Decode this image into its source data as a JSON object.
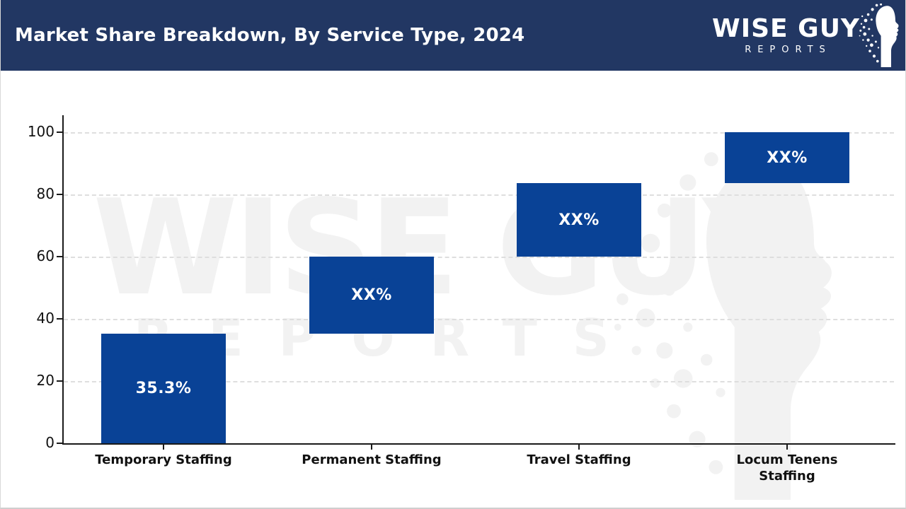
{
  "header": {
    "title": "Market Share Breakdown, By Service Type, 2024"
  },
  "logo": {
    "name": "WISE GUY",
    "subtitle": "REPORTS",
    "icon": "dotted-face-profile-icon"
  },
  "watermark": {
    "line1": "WISE GUY",
    "line2": "REPORTS",
    "icon": "dotted-face-profile-icon"
  },
  "chart_data": {
    "type": "bar",
    "subtype": "waterfall",
    "title": "Market Share Breakdown, By Service Type, 2024",
    "categories": [
      "Temporary Staffing",
      "Permanent Staffing",
      "Travel Staffing",
      "Locum Tenens\nStaffing"
    ],
    "segments": [
      {
        "category": "Temporary Staffing",
        "start": 0,
        "end": 35.3,
        "label": "35.3%"
      },
      {
        "category": "Permanent Staffing",
        "start": 35.3,
        "end": 60,
        "label": "XX%"
      },
      {
        "category": "Travel Staffing",
        "start": 60,
        "end": 83.6,
        "label": "XX%"
      },
      {
        "category": "Locum Tenens\nStaffing",
        "start": 83.6,
        "end": 100,
        "label": "XX%"
      }
    ],
    "yticks": [
      0,
      20,
      40,
      60,
      80,
      100
    ],
    "ylim": [
      0,
      105
    ],
    "xlabel": "",
    "ylabel": "",
    "grid": "horizontal-dashed",
    "legend": "none",
    "bar_color": "#094296",
    "bar_label_color": "#ffffff"
  },
  "colors": {
    "header_bg": "#223763",
    "bar_blue": "#094296",
    "watermark_gray": "#f2f2f2",
    "gridline_gray": "#dedede",
    "axis_black": "#1a1a1a"
  }
}
